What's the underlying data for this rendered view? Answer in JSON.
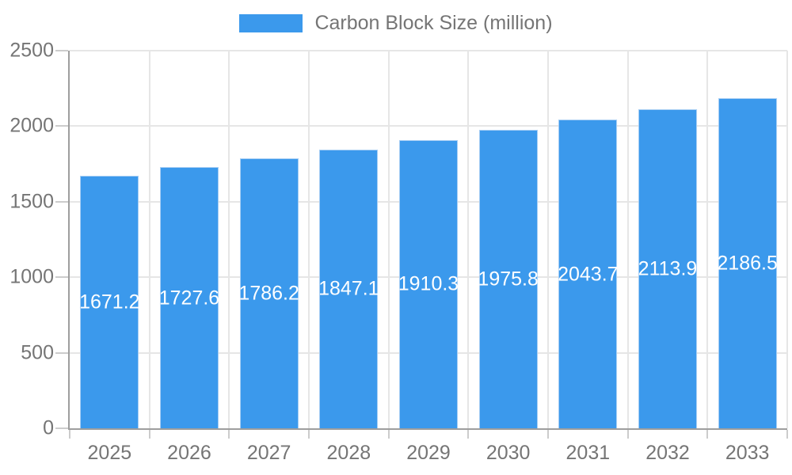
{
  "chart_data": {
    "type": "bar",
    "title": "Carbon Block Size (million)",
    "legend_position": "top",
    "grid": true,
    "categories": [
      "2025",
      "2026",
      "2027",
      "2028",
      "2029",
      "2030",
      "2031",
      "2032",
      "2033"
    ],
    "series": [
      {
        "name": "Carbon Block Size (million)",
        "values": [
          1671.2,
          1727.6,
          1786.2,
          1847.1,
          1910.3,
          1975.8,
          2043.7,
          2113.9,
          2186.5
        ]
      }
    ],
    "value_labels": [
      "1671.2",
      "1727.6",
      "1786.2",
      "1847.1",
      "1910.3",
      "1975.8",
      "2043.7",
      "2113.9",
      "2186.5"
    ],
    "xlabel": "",
    "ylabel": "",
    "ylim": [
      0,
      2500
    ],
    "yticks": [
      0,
      500,
      1000,
      1500,
      2000,
      2500
    ],
    "colors": {
      "bar": "#3B99EC",
      "bar_edge": "#A9CFF4",
      "value_label": "#FFFFFF",
      "axis_text": "#757575",
      "axis_line": "#9E9E9E",
      "gridline": "#E6E6E6",
      "tick": "#CCCCCC",
      "background": "#FFFFFF"
    }
  }
}
